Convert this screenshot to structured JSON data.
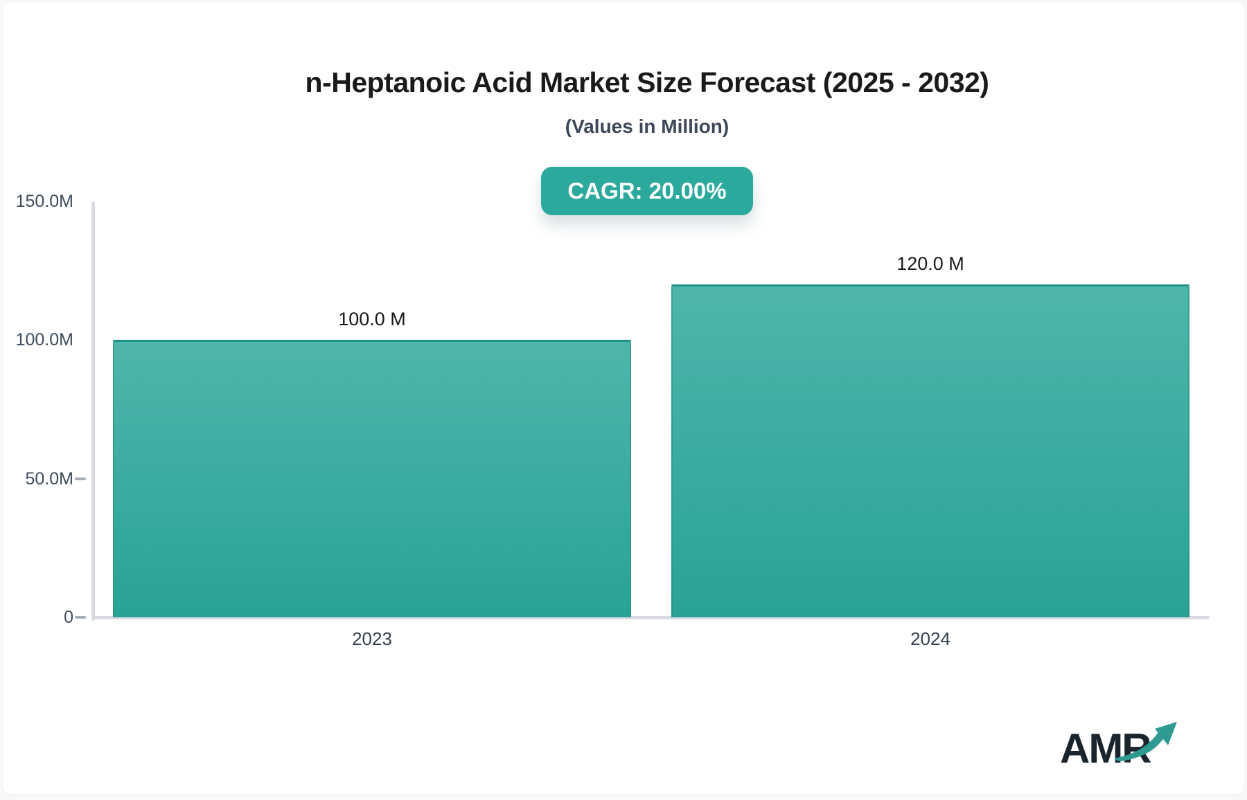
{
  "page": {
    "background": "#f7f8fa",
    "card_background": "#ffffff"
  },
  "chart_data": {
    "type": "bar",
    "title": "n-Heptanoic Acid Market Size Forecast (2025 - 2032)",
    "subtitle": "(Values in Million)",
    "annotation": "CAGR: 20.00%",
    "categories": [
      "2023",
      "2024"
    ],
    "values": [
      100.0,
      120.0
    ],
    "value_labels": [
      "100.0 M",
      "120.0 M"
    ],
    "xlabel": "",
    "ylabel": "",
    "ylim": [
      0,
      150
    ],
    "grid": false,
    "legend": false,
    "y_axis_ticks": [
      {
        "label": "150.0M",
        "value": 150,
        "dash": false
      },
      {
        "label": "100.0M",
        "value": 100,
        "dash": false
      },
      {
        "label": "50.0M",
        "value": 50,
        "dash": true
      },
      {
        "label": "0",
        "value": 0,
        "dash": true
      }
    ],
    "colors": {
      "bar_gradient_top": "#4fb5ab",
      "bar_gradient_bottom": "#29a295",
      "bar_border": "#1f9187",
      "badge_background": "#2ba99c",
      "axis_line": "#d7dae0",
      "tick": "#a6adb8",
      "title_text": "#1a1a1a",
      "subtitle_text": "#3d4757",
      "axis_label_text": "#3e4c5c",
      "value_label_text": "#17191c",
      "category_label_text": "#333f4e"
    }
  },
  "logo": {
    "text": "AMR",
    "text_color": "#19242d",
    "arrow_color": "#2f9a92"
  }
}
